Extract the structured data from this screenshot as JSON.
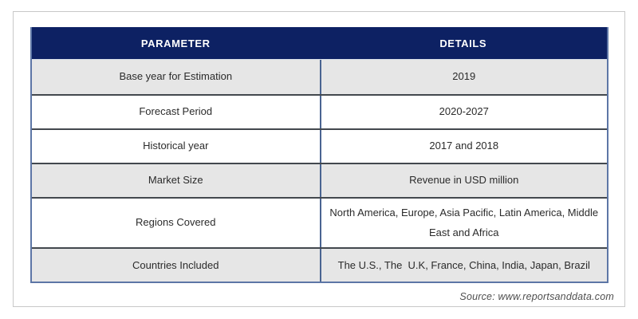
{
  "chart_data": {
    "type": "table",
    "columns": {
      "parameter": "PARAMETER",
      "details": "DETAILS"
    },
    "rows": [
      {
        "parameter": "Base year for Estimation",
        "details": "2019"
      },
      {
        "parameter": "Forecast Period",
        "details": "2020-2027"
      },
      {
        "parameter": "Historical year",
        "details": "2017 and 2018"
      },
      {
        "parameter": "Market Size",
        "details": "Revenue in USD million"
      },
      {
        "parameter": "Regions Covered",
        "details": "North America, Europe, Asia Pacific, Latin America, Middle East and Africa"
      },
      {
        "parameter": "Countries Included",
        "details": "The U.S., The  U.K, France, China, India, Japan, Brazil"
      }
    ],
    "source": "Source: www.reportsanddata.com"
  },
  "colors": {
    "header_bg": "#0d2163",
    "alt_row_bg": "#e6e6e6",
    "row_divider": "#43484e",
    "column_divider": "#4a6491",
    "table_outer_border": "#5d76a6",
    "card_border": "#c8c8c8",
    "header_text": "#ffffff",
    "body_text": "#2b2b2b",
    "source_text": "#4f4f4f"
  }
}
